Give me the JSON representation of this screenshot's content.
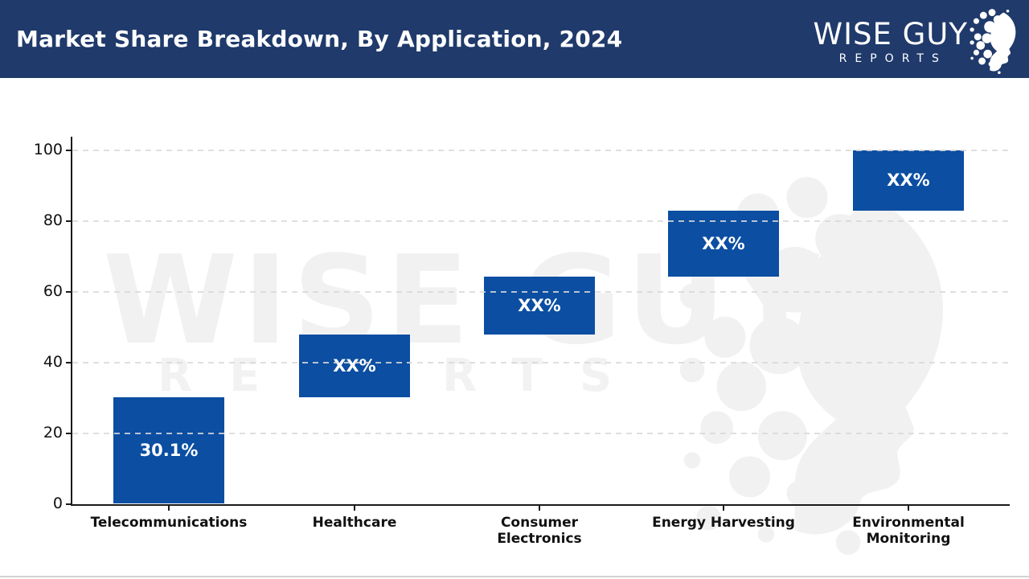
{
  "header": {
    "title": "Market Share Breakdown, By Application, 2024",
    "logo_line1": "WISE GUY",
    "logo_line2": "REPORTS"
  },
  "watermark": {
    "line1": "WISE GUY",
    "line2": "REPORTS"
  },
  "colors": {
    "header_bg": "#1f3a6b",
    "bar": "#0b4ea2",
    "bar_label": "#ffffff",
    "grid": "#d9d9d9",
    "axis": "#1a1a1a",
    "watermark": "#f1f1f1"
  },
  "chart_data": {
    "type": "bar",
    "subtype": "waterfall",
    "title": "Market Share Breakdown, By Application, 2024",
    "categories": [
      "Telecommunications",
      "Healthcare",
      "Consumer Electronics",
      "Energy Harvesting",
      "Environmental Monitoring"
    ],
    "category_lines": [
      [
        "Telecommunications"
      ],
      [
        "Healthcare"
      ],
      [
        "Consumer",
        "Electronics"
      ],
      [
        "Energy Harvesting"
      ],
      [
        "Environmental",
        "Monitoring"
      ]
    ],
    "bar_labels": [
      "30.1%",
      "XX%",
      "XX%",
      "XX%",
      "XX%"
    ],
    "bar_ranges": [
      [
        0,
        30.1
      ],
      [
        30.1,
        48.0
      ],
      [
        48.0,
        64.3
      ],
      [
        64.3,
        83.0
      ],
      [
        83.0,
        100.0
      ]
    ],
    "segment_values": [
      30.1,
      17.9,
      16.3,
      18.7,
      17.0
    ],
    "xlabel": "",
    "ylabel": "",
    "ylim": [
      0,
      104
    ],
    "yticks": [
      0,
      20,
      40,
      60,
      80,
      100
    ],
    "grid": "dashed-horizontal, drawn over bars",
    "legend": "none"
  }
}
